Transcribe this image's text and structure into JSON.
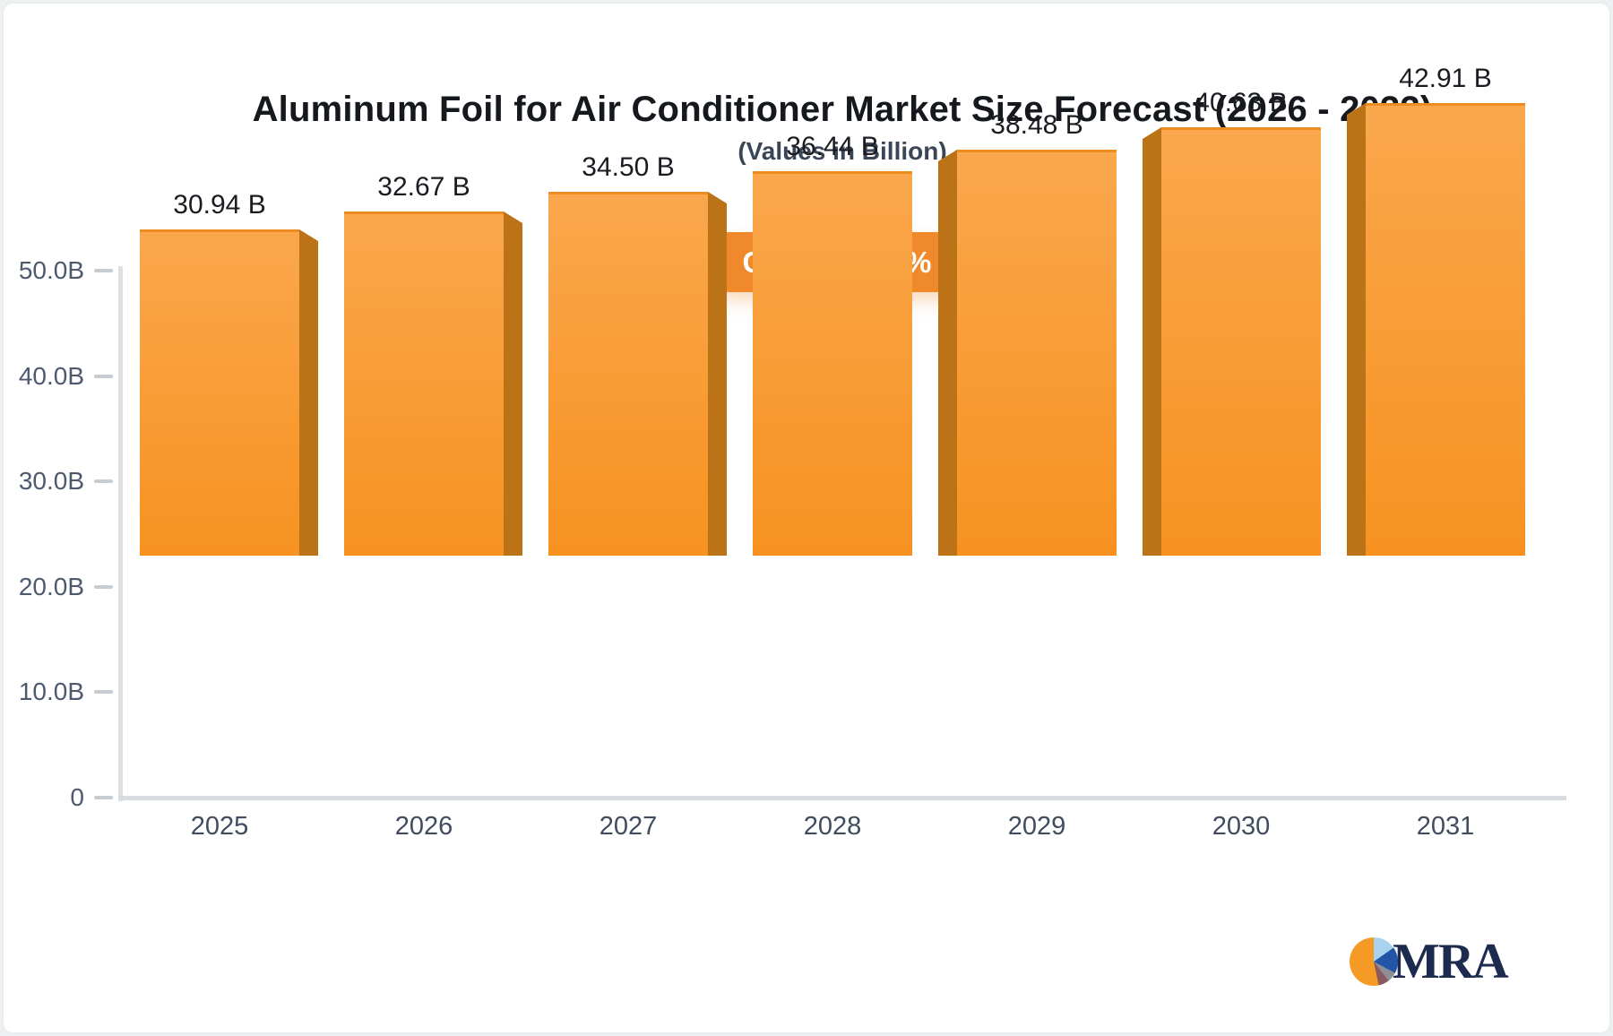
{
  "title": "Aluminum Foil for Air Conditioner Market Size Forecast (2026 - 2033)",
  "subtitle": "(Values in Billion)",
  "badge": {
    "label": "CAGR: 5.60%"
  },
  "logo": {
    "text": "MRA"
  },
  "chart_data": {
    "type": "bar",
    "categories": [
      "2025",
      "2026",
      "2027",
      "2028",
      "2029",
      "2030",
      "2031"
    ],
    "values": [
      30.94,
      32.67,
      34.5,
      36.44,
      38.48,
      40.63,
      42.91
    ],
    "bar_labels": [
      "30.94 B",
      "32.67 B",
      "34.50 B",
      "36.44 B",
      "38.48 B",
      "40.63 B",
      "42.91 B"
    ],
    "title": "Aluminum Foil for Air Conditioner Market Size Forecast (2026 - 2033)",
    "subtitle": "(Values in Billion)",
    "annotation": "CAGR: 5.60%",
    "xlabel": "",
    "ylabel": "",
    "ylim": [
      0,
      50
    ],
    "y_tick_values": [
      0,
      10,
      20,
      30,
      40,
      50
    ],
    "y_tick_labels": [
      "0",
      "10.0B",
      "20.0B",
      "30.0B",
      "40.0B",
      "50.0B"
    ],
    "grid": false,
    "legend": false,
    "style": "3d-bars, side faces angled toward center vanishing point",
    "colors": {
      "bar_face_top": "#FAA74D",
      "bar_face_bottom": "#F79220",
      "bar_side": "#BC7318",
      "badge_bg": "#F0892B",
      "axis_line": "#DCDFE3",
      "tick_label": "#4D5A6E",
      "value_label": "#1A1C21"
    }
  }
}
